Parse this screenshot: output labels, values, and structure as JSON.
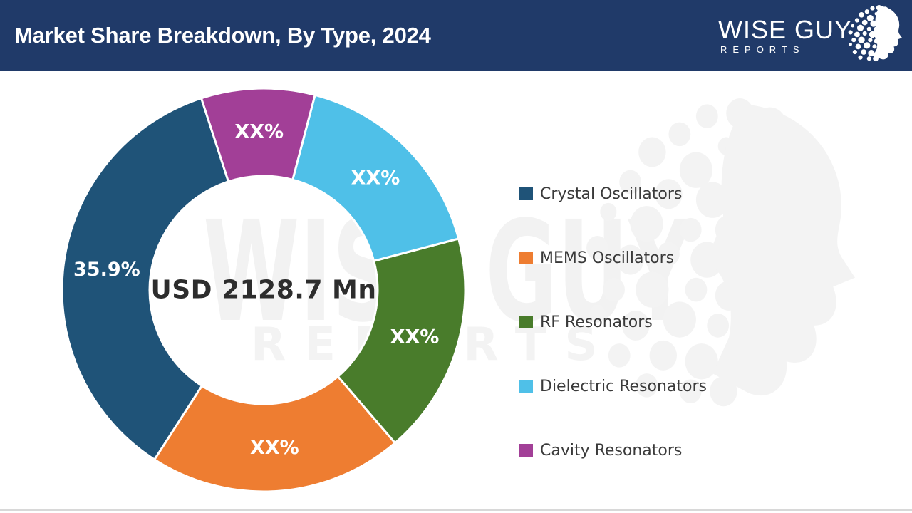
{
  "header": {
    "title": "Market Share Breakdown, By Type, 2024",
    "logo": {
      "line1": "WISE GUY",
      "line2": "REPORTS"
    }
  },
  "watermark": {
    "line1": "WISE GUY",
    "line2": "REPORTS"
  },
  "chart_data": {
    "type": "pie",
    "subtype": "donut",
    "title": "Market Share Breakdown, By Type, 2024",
    "center_label": "USD 2128.7 Mn",
    "start_angle_deg": 108,
    "direction": "counterclockwise",
    "legend_position": "right",
    "series": [
      {
        "name": "Crystal Oscillators",
        "label": "35.9%",
        "value_pct": 35.9,
        "color": "#1F5378"
      },
      {
        "name": "MEMS Oscillators",
        "label": "XX%",
        "value_pct": 20.4,
        "color": "#EE7D31"
      },
      {
        "name": "RF Resonators",
        "label": "XX%",
        "value_pct": 17.8,
        "color": "#497C2B"
      },
      {
        "name": "Dielectric Resonators",
        "label": "XX%",
        "value_pct": 16.8,
        "color": "#4FC0E8"
      },
      {
        "name": "Cavity Resonators",
        "label": "XX%",
        "value_pct": 9.1,
        "color": "#A23F97"
      }
    ]
  },
  "colors": {
    "header_bg": "#203A69",
    "legend_text": "#3A3A3A",
    "center_text": "#2D2D2D",
    "watermark": "#F2F2F2",
    "divider": "#D8D8D8"
  }
}
